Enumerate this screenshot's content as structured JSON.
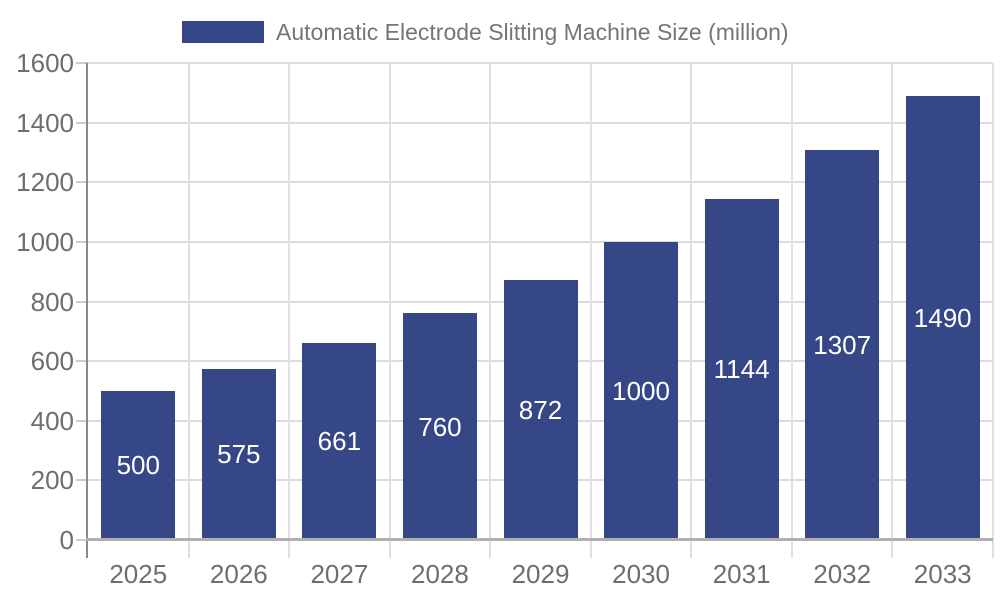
{
  "legend": {
    "label": "Automatic Electrode Slitting Machine Size (million)"
  },
  "chart_data": {
    "type": "bar",
    "title": "Automatic Electrode Slitting Machine Size (million)",
    "categories": [
      "2025",
      "2026",
      "2027",
      "2028",
      "2029",
      "2030",
      "2031",
      "2032",
      "2033"
    ],
    "values": [
      500,
      575,
      661,
      760,
      872,
      1000,
      1144,
      1307,
      1490
    ],
    "xlabel": "",
    "ylabel": "",
    "ylim": [
      0,
      1600
    ],
    "yticks": [
      0,
      200,
      400,
      600,
      800,
      1000,
      1200,
      1400,
      1600
    ],
    "grid": true,
    "legend_position": "top",
    "value_labels": "inside-center",
    "colors": {
      "bar": "#364787",
      "value_label": "#ffffff",
      "legend_text": "#757575",
      "axis_tick_text": "#6e6e6e",
      "gridline": "#dcdcdc",
      "y_axis_line": "#8a8a8a",
      "x_axis_line": "#b0b0b0"
    }
  }
}
